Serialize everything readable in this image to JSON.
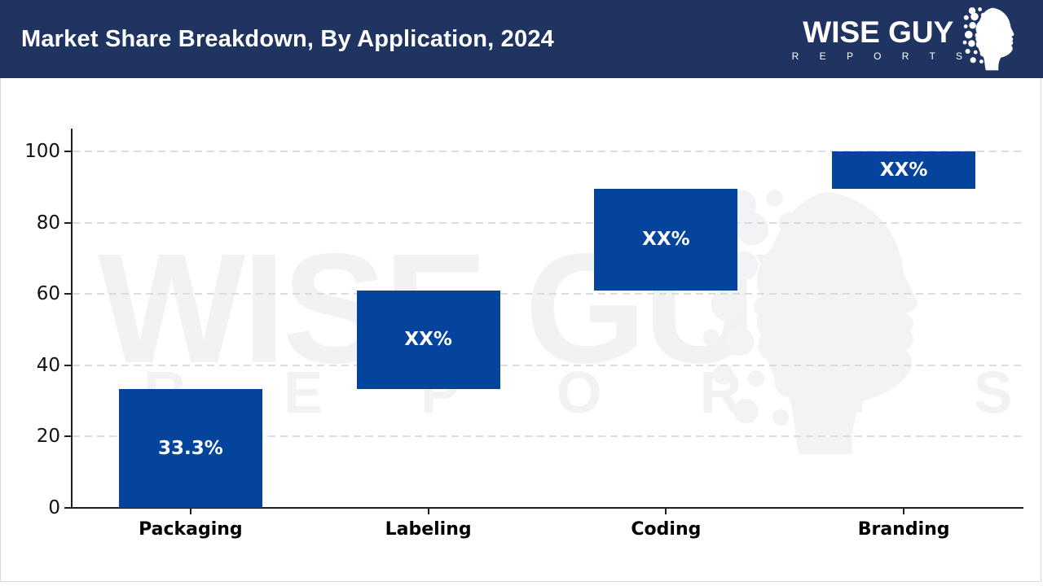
{
  "header": {
    "title": "Market Share Breakdown, By Application, 2024",
    "logo": {
      "line1": "WISE GUY",
      "line2": "R E P O R T S"
    }
  },
  "watermark": {
    "line1": "WISE GUY",
    "line2": "R E P O R T S"
  },
  "colors": {
    "header_bg": "#203462",
    "bar": "#05449c",
    "axis": "#1f1f1f",
    "gridline": "#dcdcdc",
    "bar_label": "#ffffff",
    "watermark": "#f1f2f4"
  },
  "chart_data": {
    "type": "bar",
    "subtype": "waterfall",
    "title": "Market Share Breakdown, By Application, 2024",
    "categories": [
      "Packaging",
      "Labeling",
      "Coding",
      "Branding"
    ],
    "segments": [
      {
        "category": "Packaging",
        "start": 0,
        "end": 33.3,
        "label": "33.3%"
      },
      {
        "category": "Labeling",
        "start": 33.3,
        "end": 61,
        "label": "XX%"
      },
      {
        "category": "Coding",
        "start": 61,
        "end": 89.5,
        "label": "XX%"
      },
      {
        "category": "Branding",
        "start": 89.5,
        "end": 100,
        "label": "XX%"
      }
    ],
    "xlabel": "",
    "ylabel": "",
    "ylim": [
      0,
      100
    ],
    "yticks": [
      0,
      20,
      40,
      60,
      80,
      100
    ],
    "grid": "horizontal-dashed",
    "legend": "none"
  }
}
